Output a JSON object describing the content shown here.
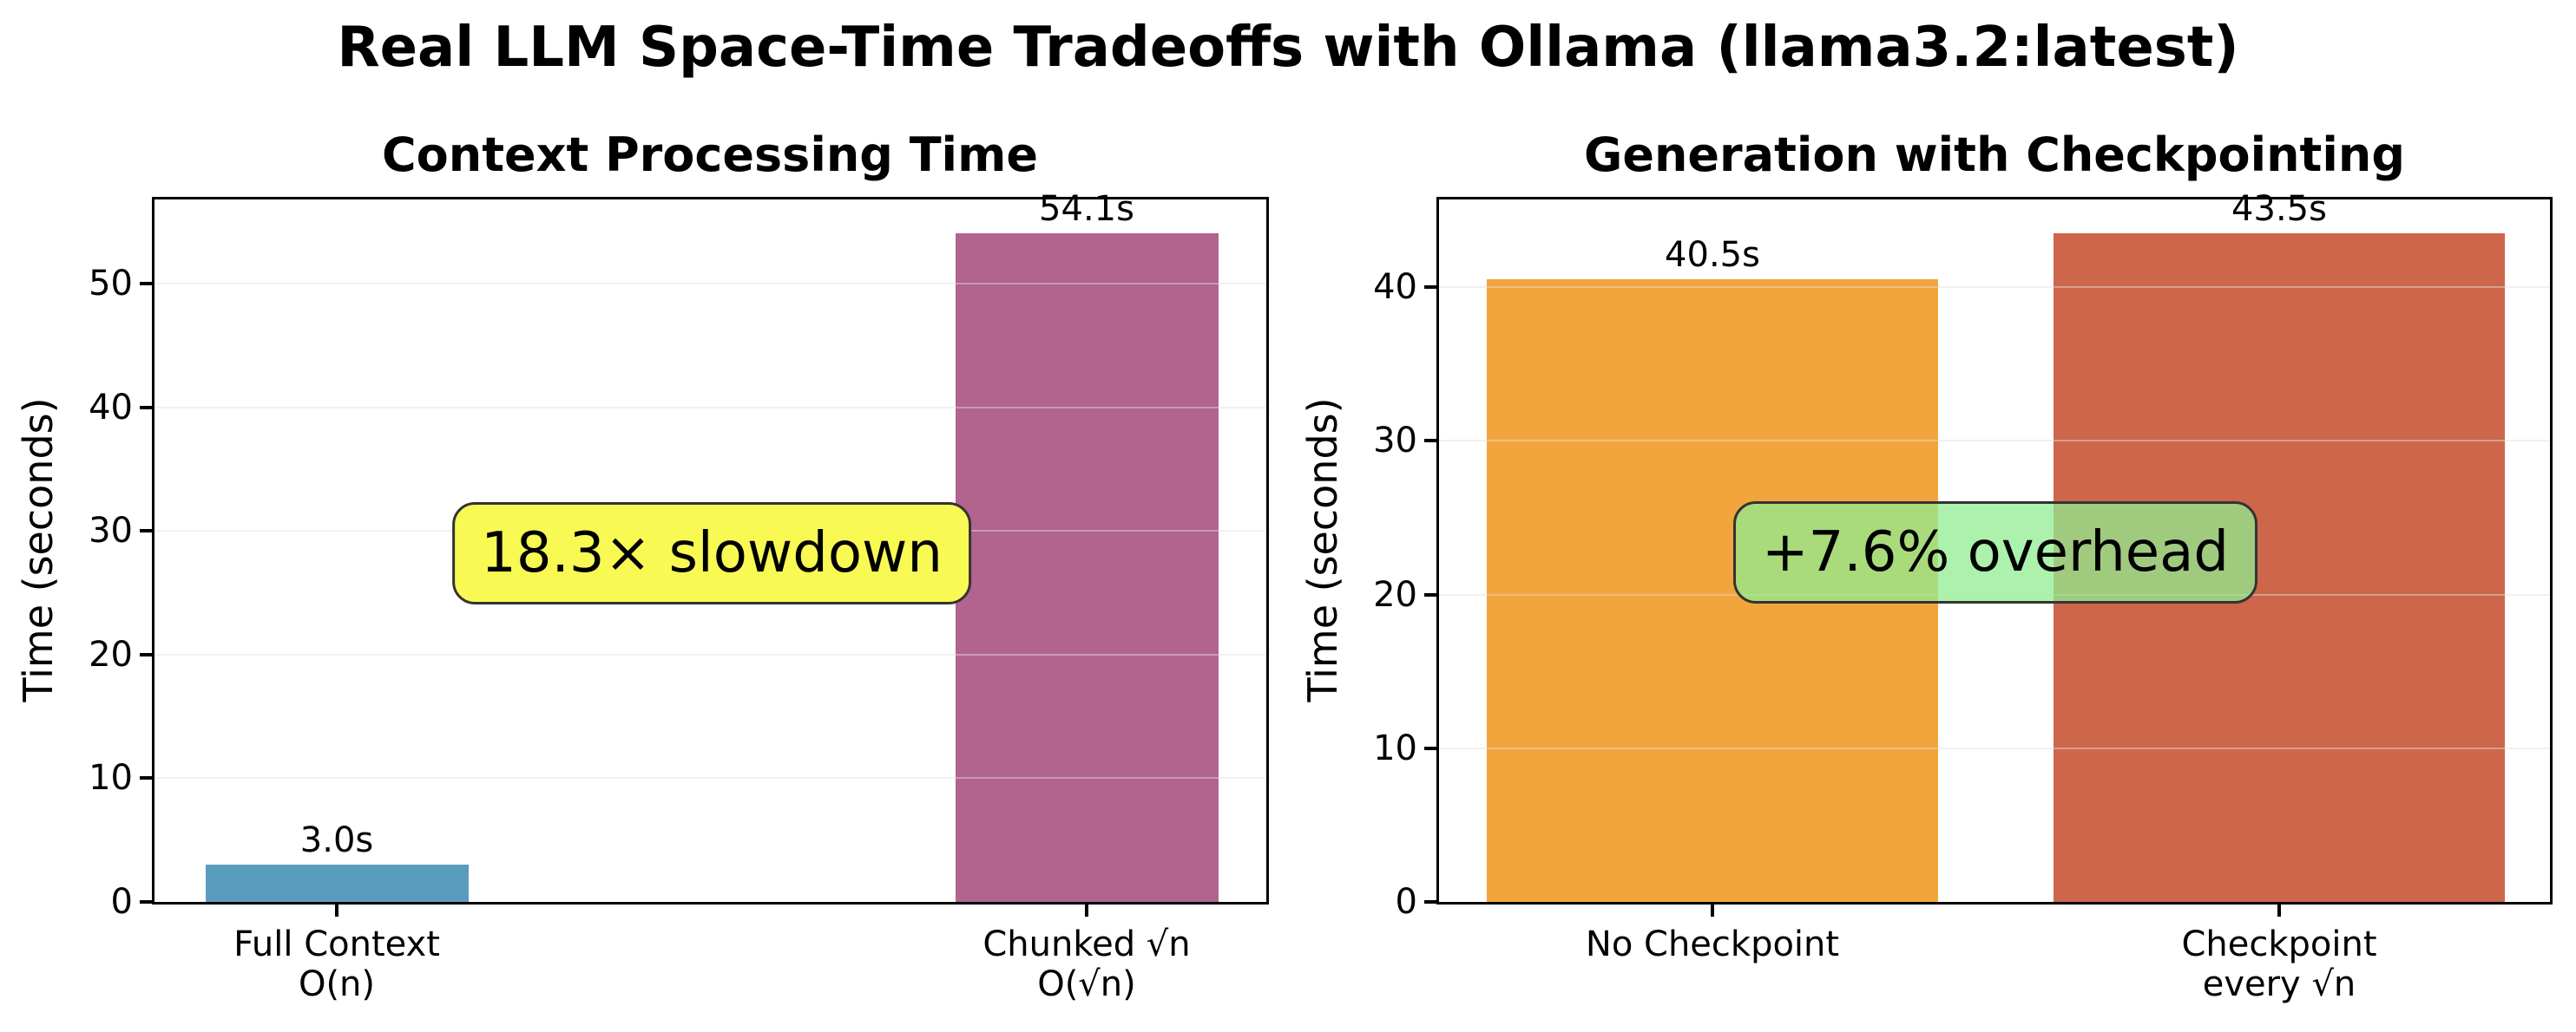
{
  "suptitle": "Real LLM Space-Time Tradeoffs with Ollama (llama3.2:latest)",
  "chart_data": [
    {
      "type": "bar",
      "title": "Context Processing Time",
      "xlabel": "",
      "ylabel": "Time (seconds)",
      "categories": [
        "Full Context\nO(n)",
        "Chunked √n\nO(√n)"
      ],
      "values": [
        3.0,
        54.1
      ],
      "bar_labels": [
        "3.0s",
        "54.1s"
      ],
      "bar_colors": [
        "#5A9CBE",
        "#B2638E"
      ],
      "yticks": [
        0,
        10,
        20,
        30,
        40,
        50
      ],
      "ylim": [
        0,
        56.8
      ],
      "grid": true,
      "legend": "none",
      "annotation": {
        "text": "18.3× slowdown",
        "bg": "#F9F954",
        "bg_alpha": 1,
        "border": "#333333"
      }
    },
    {
      "type": "bar",
      "title": "Generation with Checkpointing",
      "xlabel": "",
      "ylabel": "Time (seconds)",
      "categories": [
        "No Checkpoint",
        "Checkpoint\nevery √n"
      ],
      "values": [
        40.5,
        43.5
      ],
      "bar_labels": [
        "40.5s",
        "43.5s"
      ],
      "bar_colors": [
        "#F2A53C",
        "#CE664B"
      ],
      "yticks": [
        0,
        10,
        20,
        30,
        40
      ],
      "ylim": [
        0,
        45.7
      ],
      "grid": true,
      "legend": "none",
      "annotation": {
        "text": "+7.6% overhead",
        "bg": "#90EE90",
        "bg_alpha": 0.75,
        "border": "#333333"
      }
    }
  ]
}
